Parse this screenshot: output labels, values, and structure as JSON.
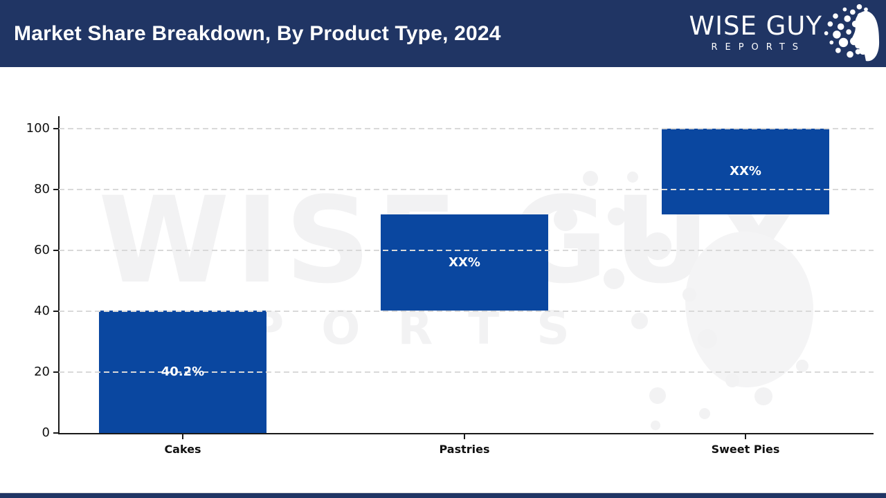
{
  "header": {
    "title": "Market Share Breakdown, By Product Type, 2024",
    "logo": {
      "wordmark": "WISE GUY",
      "subtext": "REPORTS"
    }
  },
  "watermark": {
    "wordmark": "WISE GUY",
    "subtext": "REPORTS"
  },
  "chart_data": {
    "type": "bar",
    "subtype": "floating-waterfall",
    "title": "Market Share Breakdown, By Product Type, 2024",
    "categories": [
      "Cakes",
      "Pastries",
      "Sweet Pies"
    ],
    "series": [
      {
        "name": "Market share (%)",
        "segments": [
          {
            "category": "Cakes",
            "start": 0,
            "end": 40.2,
            "label": "40.2%"
          },
          {
            "category": "Pastries",
            "start": 40.2,
            "end": 71.8,
            "label": "XX%"
          },
          {
            "category": "Sweet Pies",
            "start": 71.8,
            "end": 100,
            "label": "XX%"
          }
        ]
      }
    ],
    "xlabel": "",
    "ylabel": "",
    "ylim": [
      0,
      100
    ],
    "yticks": [
      0,
      20,
      40,
      60,
      80,
      100
    ],
    "grid": "horizontal-dashed",
    "legend": "none"
  },
  "colors": {
    "header_bg": "#203564",
    "footer_bg": "#203564",
    "bar": "#0a47a0",
    "bar_label": "#ffffff",
    "grid": "#d9d9d9",
    "axis": "#1a1a1a",
    "watermark": "#f2f2f3"
  }
}
